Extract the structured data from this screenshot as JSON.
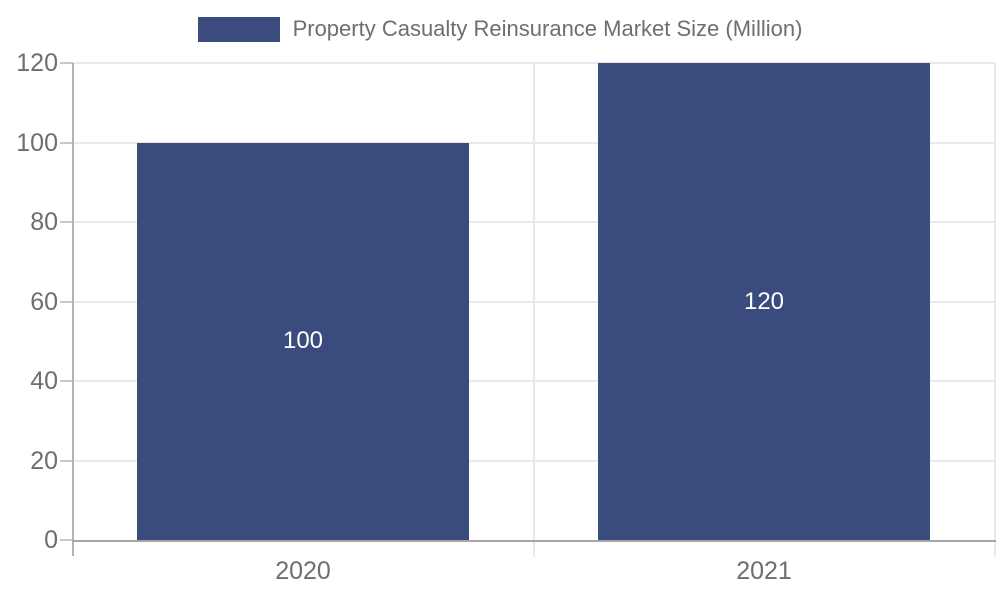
{
  "legend": {
    "label": "Property Casualty Reinsurance Market Size (Million)",
    "swatch_color": "#3A4B7E"
  },
  "chart_data": {
    "type": "bar",
    "title": "",
    "series_name": "Property Casualty Reinsurance Market Size (Million)",
    "categories": [
      "2020",
      "2021"
    ],
    "values": [
      100,
      120
    ],
    "value_labels": [
      "100",
      "120"
    ],
    "xlabel": "",
    "ylabel": "",
    "ylim": [
      0,
      120
    ],
    "yticks": [
      0,
      20,
      40,
      60,
      80,
      100,
      120
    ],
    "bar_color": "#3A4B7E",
    "value_label_color": "#FFFFFF",
    "axis_label_color": "#6e6e6e",
    "grid": true,
    "legend_position": "top-center"
  }
}
